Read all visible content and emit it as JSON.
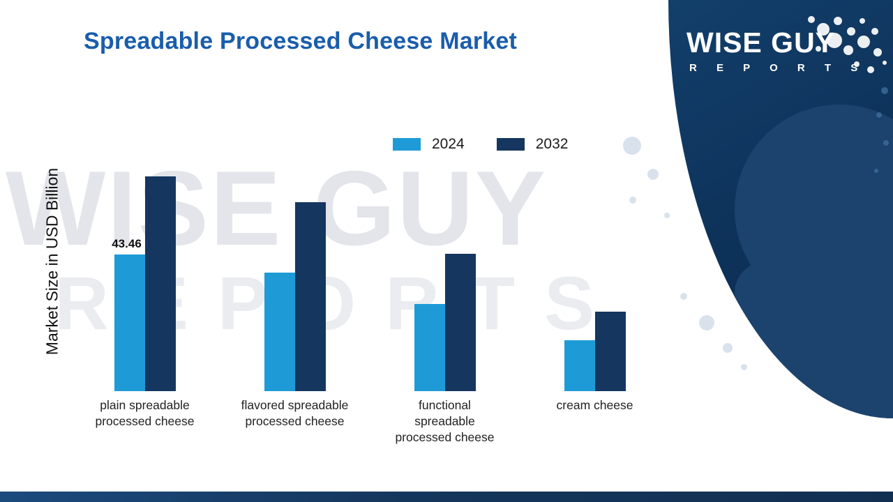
{
  "page": {
    "title": "Spreadable Processed Cheese Market",
    "y_axis_label": "Market Size in USD Billion"
  },
  "watermark": {
    "line1": "WISE GUY",
    "line2": "REPORTS"
  },
  "logo": {
    "title": "WISE GUY",
    "subtitle": "R E P O R T S"
  },
  "colors": {
    "series_2024": "#1e9bd7",
    "series_2032": "#15365f",
    "title_blue": "#1a5dab"
  },
  "chart_data": {
    "type": "bar",
    "title": "Spreadable Processed Cheese Market",
    "xlabel": "",
    "ylabel": "Market Size in USD Billion",
    "ylim": [
      0,
      70
    ],
    "grid": false,
    "legend_position": "top",
    "categories": [
      "plain spreadable processed cheese",
      "flavored spreadable processed cheese",
      "functional spreadable processed cheese",
      "cream cheese"
    ],
    "series": [
      {
        "name": "2024",
        "color": "#1e9bd7",
        "values": [
          43.46,
          37.9,
          27.7,
          16.2
        ]
      },
      {
        "name": "2032",
        "color": "#15365f",
        "values": [
          68.5,
          60.3,
          43.9,
          25.3
        ]
      }
    ],
    "annotations": [
      {
        "series_index": 0,
        "category_index": 0,
        "text": "43.46"
      }
    ]
  }
}
